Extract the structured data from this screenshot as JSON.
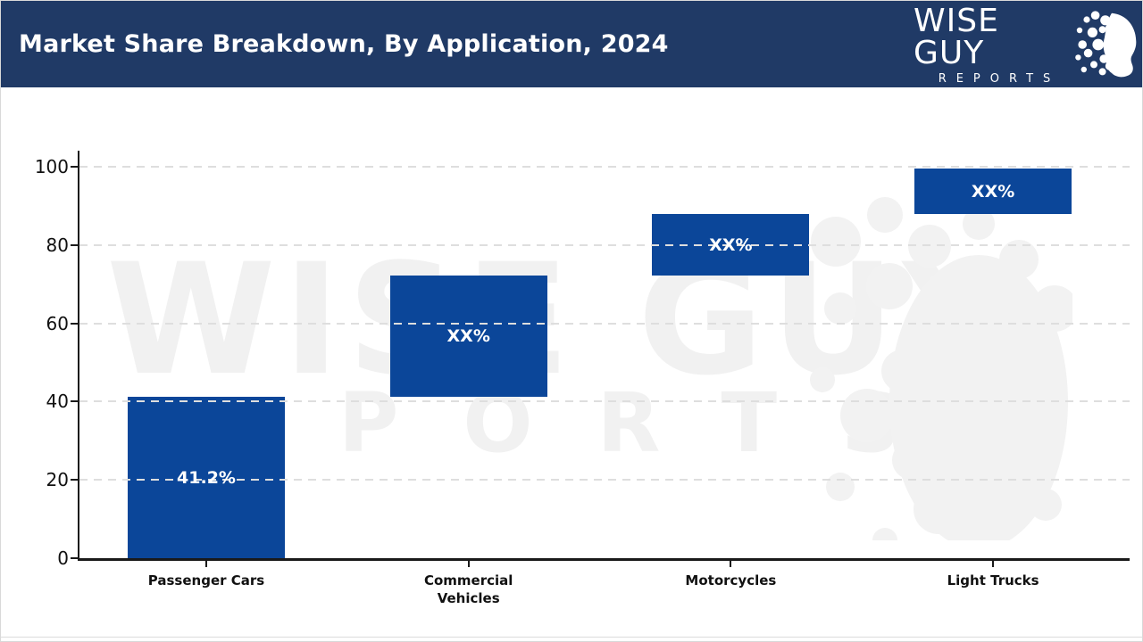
{
  "header": {
    "title": "Market Share Breakdown, By Application, 2024",
    "bg_color": "#203a66",
    "logo": {
      "line1": "WISE GUY",
      "line2": "REPORTS"
    }
  },
  "watermark": {
    "line1": "WISE GUY",
    "line2": "PORTS"
  },
  "chart_data": {
    "type": "bar",
    "subtype": "waterfall",
    "title": "Market Share Breakdown, By Application, 2024",
    "categories": [
      "Passenger Cars",
      "Commercial\nVehicles",
      "Motorcycles",
      "Light Trucks"
    ],
    "segments": [
      {
        "category": "Passenger Cars",
        "start": 0,
        "end": 41.2,
        "label": "41.2%"
      },
      {
        "category": "Commercial Vehicles",
        "start": 41.2,
        "end": 72.2,
        "label": "XX%"
      },
      {
        "category": "Motorcycles",
        "start": 72.2,
        "end": 87.9,
        "label": "XX%"
      },
      {
        "category": "Light Trucks",
        "start": 87.9,
        "end": 99.5,
        "label": "XX%"
      }
    ],
    "ylim": [
      0,
      100
    ],
    "yticks": [
      0,
      20,
      40,
      60,
      80,
      100
    ],
    "xlabel": "",
    "ylabel": "",
    "legend": "none",
    "grid": "horizontal-dashed",
    "bar_color": "#0b4699",
    "grid_color": "#dedede",
    "label_color": "#ffffff"
  }
}
